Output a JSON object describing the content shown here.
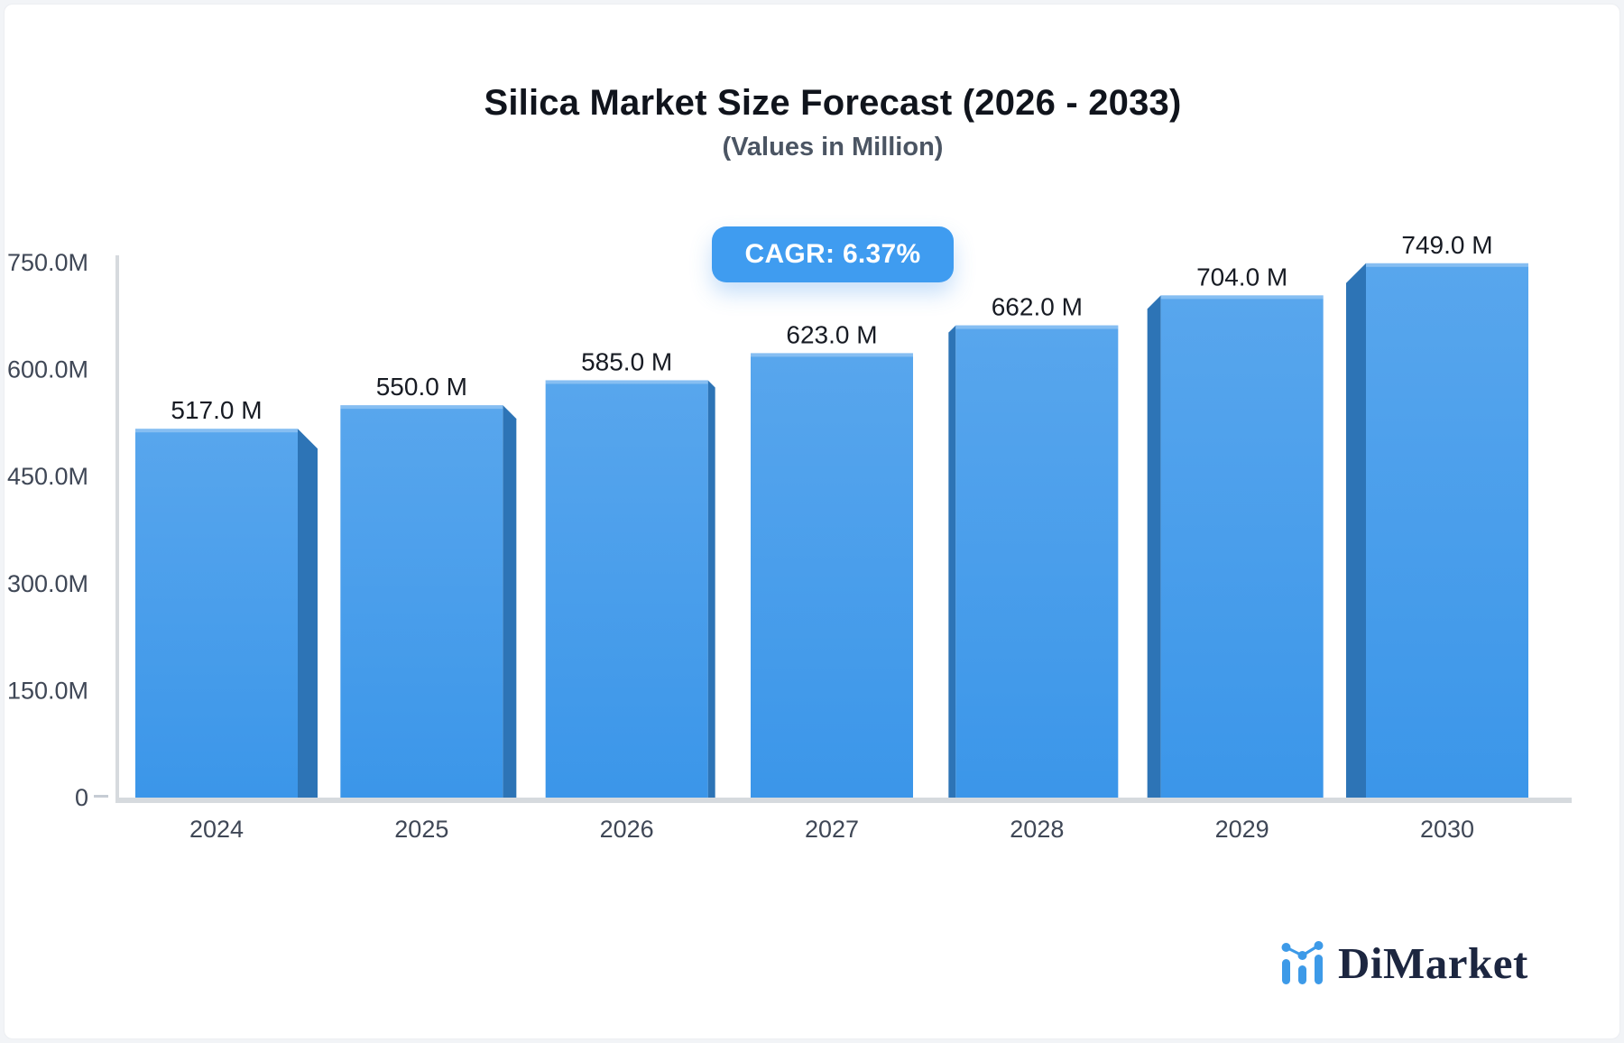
{
  "header": {
    "title": "Silica Market Size Forecast (2026 - 2033)",
    "subtitle": "(Values in Million)"
  },
  "badge": {
    "label": "CAGR: 6.37%",
    "background": "#3f9cf0",
    "text_color": "#ffffff"
  },
  "chart_data": {
    "type": "bar",
    "title": "Silica Market Size Forecast (2026 - 2033)",
    "subtitle": "(Values in Million)",
    "cagr_label": "CAGR: 6.37%",
    "categories": [
      "2024",
      "2025",
      "2026",
      "2027",
      "2028",
      "2029",
      "2030"
    ],
    "values": [
      517.0,
      550.0,
      585.0,
      623.0,
      662.0,
      704.0,
      749.0
    ],
    "value_labels": [
      "517.0 M",
      "550.0 M",
      "585.0 M",
      "623.0 M",
      "662.0 M",
      "704.0 M",
      "749.0 M"
    ],
    "xlabel": "",
    "ylabel": "",
    "ylim": [
      0,
      750
    ],
    "y_ticks": [
      {
        "label": "750.0M",
        "value": 750
      },
      {
        "label": "600.0M",
        "value": 600
      },
      {
        "label": "450.0M",
        "value": 450
      },
      {
        "label": "300.0M",
        "value": 300
      },
      {
        "label": "150.0M",
        "value": 150
      },
      {
        "label": "0",
        "value": 0
      }
    ],
    "grid": false,
    "legend": false,
    "style": "3d extruded bars, perspective vanishing toward center bar",
    "colors": {
      "bar_front_top": "#58a6ed",
      "bar_front_bottom": "#3b96e9",
      "bar_side": "#2d74b6",
      "bar_top_highlight": "rgba(255,255,255,0.28)",
      "axis_line": "#d6dade",
      "zero_tick": "#c6ccd4",
      "tick_text": "#3f4756",
      "value_text": "#171b23"
    }
  },
  "logo": {
    "text": "DiMarket",
    "icon": "bar-line-chart-icon",
    "icon_color": "#3d9ae8",
    "text_color": "#1c2640"
  }
}
